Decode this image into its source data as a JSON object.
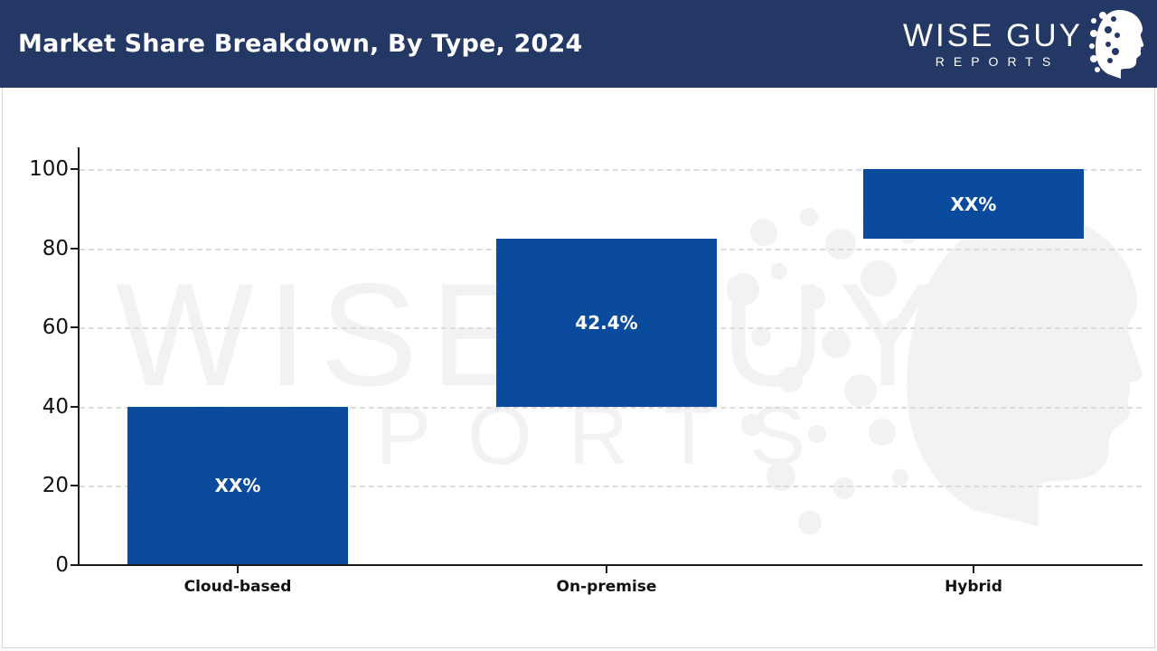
{
  "header": {
    "title": "Market Share Breakdown, By Type, 2024",
    "background_color": "#233865",
    "logo": {
      "wordmark": "WISE GUY",
      "subtext": "REPORTS"
    }
  },
  "watermark": {
    "wordmark": "WISE GUY",
    "subtext": "REPORTS"
  },
  "chart_data": {
    "type": "bar",
    "variant": "floating-waterfall",
    "title": "Market Share Breakdown, By Type, 2024",
    "categories": [
      "Cloud-based",
      "On-premise",
      "Hybrid"
    ],
    "segments": [
      {
        "category": "Cloud-based",
        "start": 0,
        "end": 40,
        "label": "XX%"
      },
      {
        "category": "On-premise",
        "start": 40,
        "end": 82.4,
        "label": "42.4%"
      },
      {
        "category": "Hybrid",
        "start": 82.4,
        "end": 100,
        "label": "XX%"
      }
    ],
    "ylim": [
      0,
      100
    ],
    "yticks": [
      0,
      20,
      40,
      60,
      80,
      100
    ],
    "xlabel": "",
    "ylabel": "",
    "grid": "horizontal-dashed",
    "legend": "none",
    "bar_color": "#0b4b9d",
    "bar_label_color": "#ffffff",
    "axis_color": "#1a1a1a",
    "gridline_color": "#dcdcdc",
    "plot_background": "#ffffff"
  }
}
